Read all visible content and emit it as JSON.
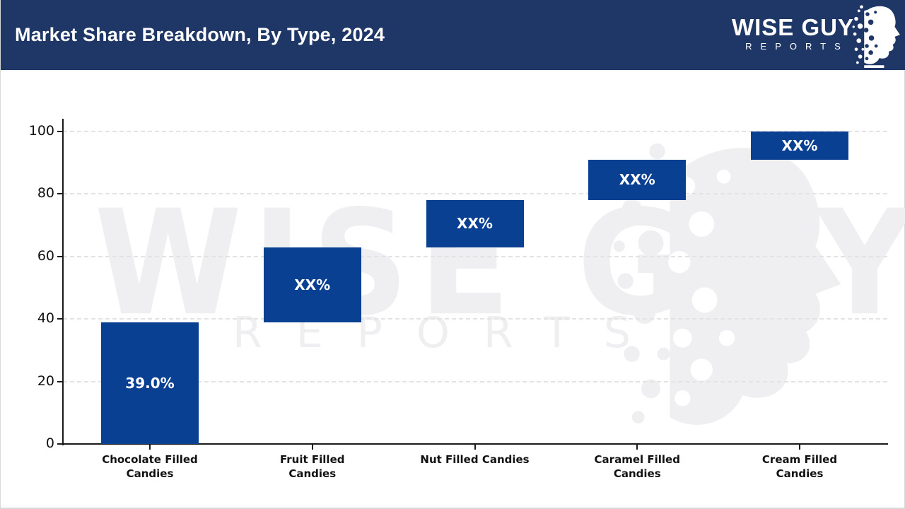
{
  "header": {
    "title": "Market Share Breakdown, By Type, 2024",
    "logo": {
      "name": "WISE GUY",
      "sub": "REPORTS"
    }
  },
  "watermark": {
    "line1": "WISE GUY",
    "line2": "REPORTS"
  },
  "colors": {
    "header_bg": "#1f3767",
    "bar": "#0a4092",
    "bar_label": "#ffffff",
    "grid": "#e3e3e5",
    "axis": "#1a1a1a",
    "watermark": "#efeff2"
  },
  "chart_data": {
    "type": "bar",
    "subtype": "waterfall",
    "title": "Market Share Breakdown, By Type, 2024",
    "xlabel": "",
    "ylabel": "",
    "ylim": [
      0,
      105
    ],
    "y_ticks": [
      0,
      20,
      40,
      60,
      80,
      100
    ],
    "grid": true,
    "legend": false,
    "categories": [
      "Chocolate Filled Candies",
      "Fruit Filled Candies",
      "Nut Filled Candies",
      "Caramel Filled Candies",
      "Cream Filled Candies"
    ],
    "category_labels": [
      "Chocolate Filled\nCandies",
      "Fruit Filled\nCandies",
      "Nut Filled Candies",
      "Caramel Filled\nCandies",
      "Cream Filled\nCandies"
    ],
    "segments": [
      {
        "category": "Chocolate Filled Candies",
        "start": 0,
        "end": 39,
        "label": "39.0%"
      },
      {
        "category": "Fruit Filled Candies",
        "start": 39,
        "end": 63,
        "label": "XX%"
      },
      {
        "category": "Nut Filled Candies",
        "start": 63,
        "end": 78,
        "label": "XX%"
      },
      {
        "category": "Caramel Filled Candies",
        "start": 78,
        "end": 91,
        "label": "XX%"
      },
      {
        "category": "Cream Filled Candies",
        "start": 91,
        "end": 100,
        "label": "XX%"
      }
    ]
  }
}
